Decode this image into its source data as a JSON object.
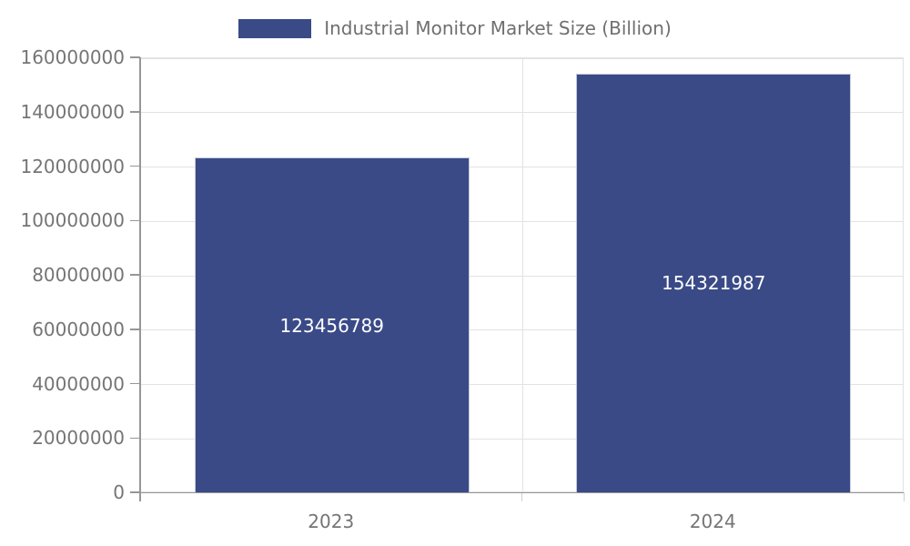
{
  "chart_data": {
    "type": "bar",
    "title": "Industrial Monitor Market Size (Billion)",
    "legend_label": "Industrial Monitor Market Size (Billion)",
    "legend_position": "top-center",
    "categories": [
      "2023",
      "2024"
    ],
    "values": [
      123456789,
      154321987
    ],
    "bar_value_labels": [
      "123456789",
      "154321987"
    ],
    "ylim": [
      0,
      160000000
    ],
    "yticks": [
      0,
      20000000,
      40000000,
      60000000,
      80000000,
      100000000,
      120000000,
      140000000,
      160000000
    ],
    "ytick_labels": [
      "0",
      "20000000",
      "40000000",
      "60000000",
      "80000000",
      "100000000",
      "120000000",
      "140000000",
      "160000000"
    ],
    "grid": true,
    "bar_width_fraction": 0.72,
    "colors": {
      "bar": "#3a4a87",
      "bar_value_label": "#ffffff",
      "axis_label": "#757575",
      "legend_label": "#6f6f6f",
      "gridline": "#e2e2e2",
      "axis_line": "#969696",
      "boundary_tick": "#cfcfcf",
      "background": "#ffffff"
    }
  }
}
